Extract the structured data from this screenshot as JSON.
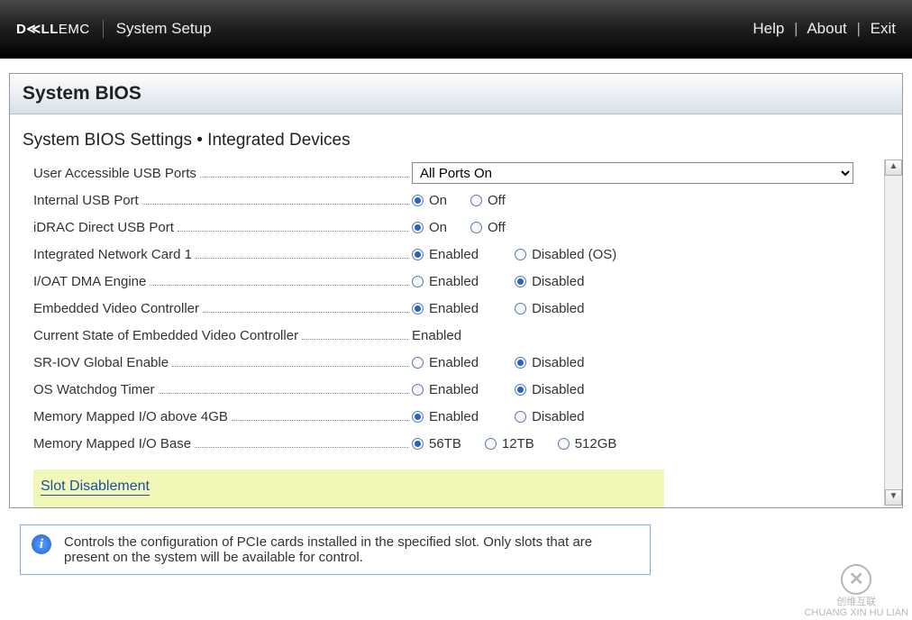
{
  "top": {
    "brand1": "D≪LL",
    "brand2": "EMC",
    "title": "System Setup",
    "help": "Help",
    "about": "About",
    "exit": "Exit"
  },
  "panel": {
    "title": "System BIOS",
    "breadcrumb": "System BIOS Settings • Integrated Devices"
  },
  "rows": {
    "usbPorts": {
      "label": "User Accessible USB Ports",
      "selected": "All Ports On"
    },
    "internalUsb": {
      "label": "Internal USB Port",
      "opt1": "On",
      "opt2": "Off",
      "sel": 0
    },
    "idrac": {
      "label": "iDRAC Direct USB Port",
      "opt1": "On",
      "opt2": "Off",
      "sel": 0
    },
    "nic1": {
      "label": "Integrated Network Card 1",
      "opt1": "Enabled",
      "opt2": "Disabled (OS)",
      "sel": 0
    },
    "ioat": {
      "label": "I/OAT DMA Engine",
      "opt1": "Enabled",
      "opt2": "Disabled",
      "sel": 1
    },
    "evideo": {
      "label": "Embedded Video Controller",
      "opt1": "Enabled",
      "opt2": "Disabled",
      "sel": 0
    },
    "evideoState": {
      "label": "Current State of Embedded Video Controller",
      "value": "Enabled"
    },
    "sriov": {
      "label": "SR-IOV Global Enable",
      "opt1": "Enabled",
      "opt2": "Disabled",
      "sel": 1
    },
    "watchdog": {
      "label": "OS Watchdog Timer",
      "opt1": "Enabled",
      "opt2": "Disabled",
      "sel": 1
    },
    "mmio4g": {
      "label": "Memory Mapped I/O above 4GB",
      "opt1": "Enabled",
      "opt2": "Disabled",
      "sel": 0
    },
    "mmiobase": {
      "label": "Memory Mapped I/O Base",
      "opt1": "56TB",
      "opt2": "12TB",
      "opt3": "512GB",
      "sel": 0
    },
    "slot": {
      "label": "Slot Disablement"
    }
  },
  "help": {
    "text": "Controls the configuration of PCIe cards installed in the specified slot. Only slots that are present on the system will be available for control."
  },
  "watermark": {
    "cn": "创维互联",
    "en": "CHUANG XIN HU LIAN"
  },
  "colors": {
    "topbar_bg": "#000000",
    "link_highlight_bg": "#f1f7b7",
    "link_color": "#1c4fa1",
    "radio_sel": "#2a62b8",
    "panel_border": "#999999",
    "help_border": "#8aa9d6"
  }
}
